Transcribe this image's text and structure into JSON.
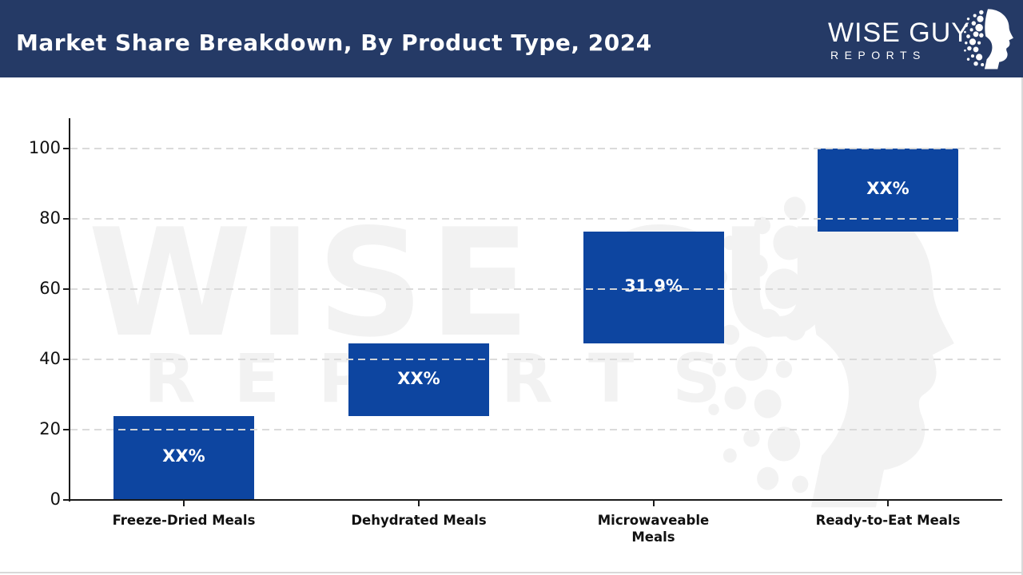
{
  "header": {
    "title": "Market Share Breakdown, By Product Type, 2024",
    "bg_color": "#253a66",
    "logo": {
      "line1": "WISE GUY",
      "line2": "REPORTS"
    }
  },
  "watermark": {
    "line1": "WISE GU",
    "line2": "REPORTS"
  },
  "chart_data": {
    "type": "bar",
    "subtype": "floating-segment-percentage-bars",
    "title": "Market Share Breakdown, By Product Type, 2024",
    "categories": [
      "Freeze-Dried Meals",
      "Dehydrated Meals",
      "Microwaveable Meals",
      "Ready-to-Eat Meals"
    ],
    "bars": [
      {
        "category": "Freeze-Dried Meals",
        "tick_label": "Freeze-Dried Meals",
        "start": 0,
        "end": 23.9,
        "label": "XX%"
      },
      {
        "category": "Dehydrated Meals",
        "tick_label": "Dehydrated Meals",
        "start": 23.9,
        "end": 44.5,
        "label": "XX%"
      },
      {
        "category": "Microwaveable Meals",
        "tick_label": "Microwaveable\nMeals",
        "start": 44.5,
        "end": 76.4,
        "label": "31.9%"
      },
      {
        "category": "Ready-to-Eat Meals",
        "tick_label": "Ready-to-Eat Meals",
        "start": 76.4,
        "end": 100,
        "label": "XX%"
      }
    ],
    "xlabel": "",
    "ylabel": "",
    "ylim": [
      0,
      100
    ],
    "yticks": [
      0,
      20,
      40,
      60,
      80,
      100
    ],
    "grid": "horizontal dashed, drawn above bars",
    "legend": "none",
    "bar_color": "#0d45a0",
    "bar_label_color": "#ffffff"
  }
}
